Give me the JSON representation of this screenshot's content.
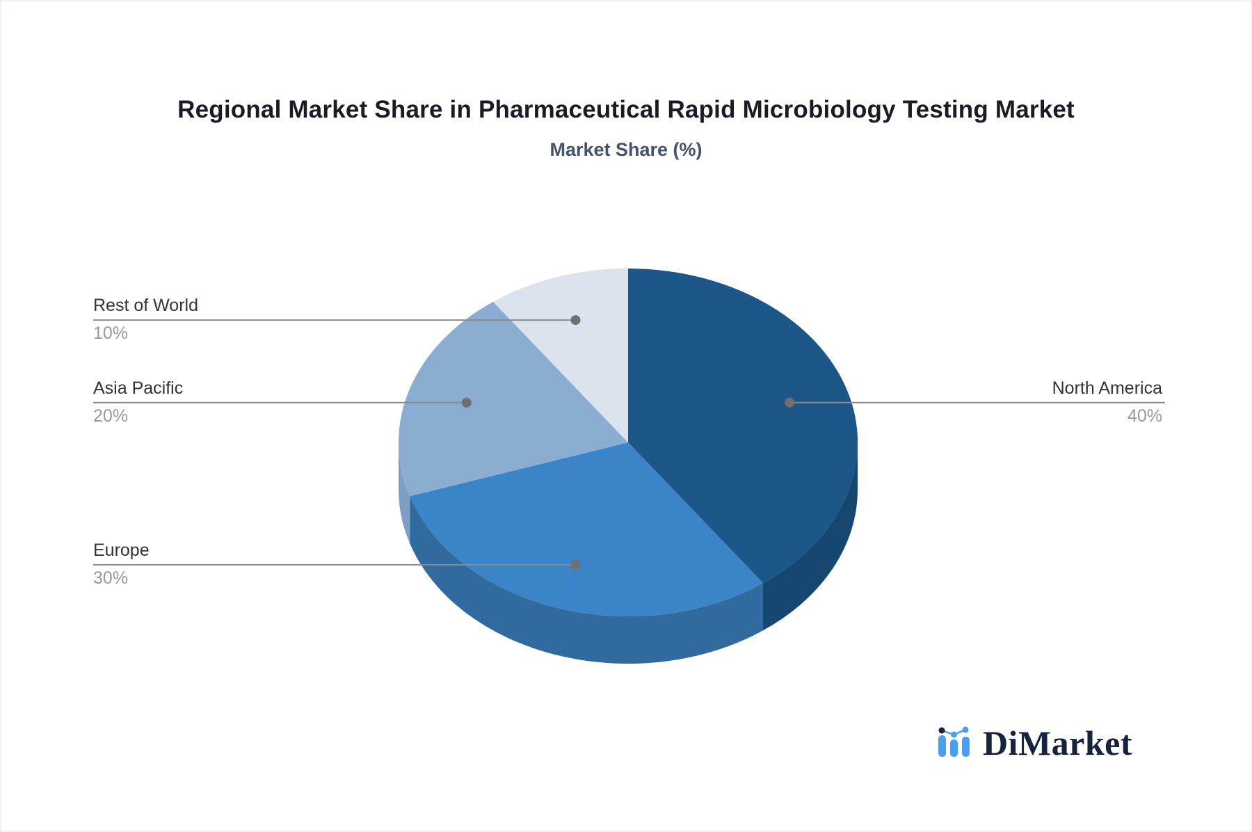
{
  "header": {
    "title": "Regional Market Share in Pharmaceutical Rapid Microbiology Testing Market",
    "subtitle": "Market Share (%)"
  },
  "chart_data": {
    "type": "pie",
    "style": "3d-pie",
    "title": "Regional Market Share in Pharmaceutical Rapid Microbiology Testing Market",
    "subtitle": "Market Share (%)",
    "unit": "%",
    "start_angle_deg": 0,
    "direction": "clockwise",
    "legend_position": "none",
    "label_style": "callout-lines-with-dots",
    "slices": [
      {
        "label": "North America",
        "value": 40,
        "percent_label": "40%",
        "color": "#1D5689",
        "side_color": "#154770"
      },
      {
        "label": "Europe",
        "value": 30,
        "percent_label": "30%",
        "color": "#3A84C7",
        "side_color": "#316A9E"
      },
      {
        "label": "Asia Pacific",
        "value": 20,
        "percent_label": "20%",
        "color": "#8CADD2",
        "side_color": "#7E9FC4"
      },
      {
        "label": "Rest of World",
        "value": 10,
        "percent_label": "10%",
        "color": "#DBE3EE",
        "side_color": "#C9D3E2"
      }
    ]
  },
  "branding": {
    "logo_text": "DiMarket",
    "logo_icon": "bar-line-chart-icon",
    "logo_blue": "#4AA0F0",
    "logo_navy": "#16233C"
  },
  "colors": {
    "background": "#FFFFFF",
    "title_text": "#1B1B25",
    "subtitle_text": "#44546A",
    "label_text": "#333333",
    "percent_text": "#999999",
    "leader_line": "#8B8B8B",
    "callout_dot": "#6F6F6F"
  }
}
